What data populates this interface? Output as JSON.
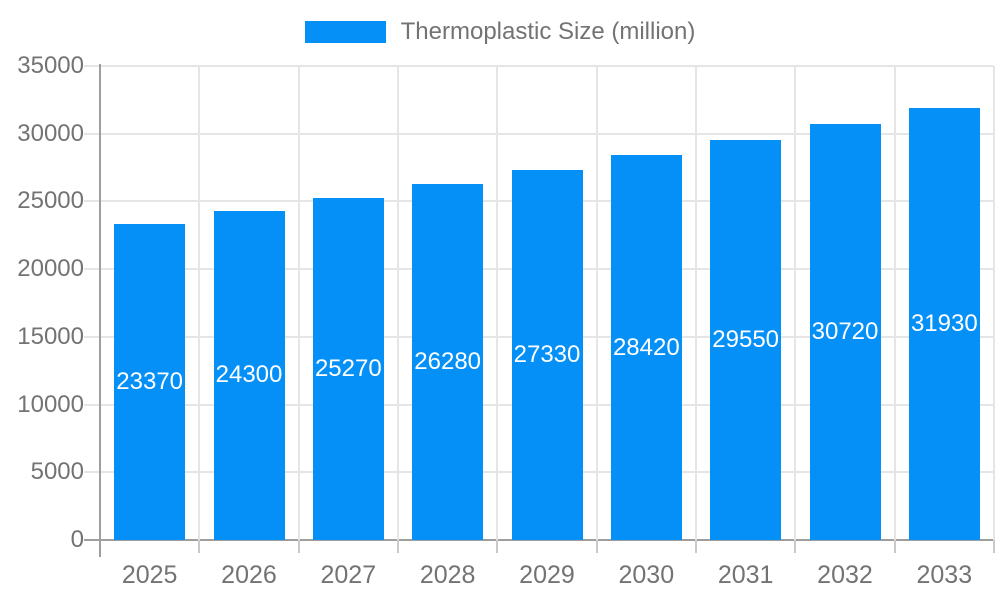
{
  "chart_data": {
    "type": "bar",
    "title": "",
    "legend": "Thermoplastic Size (million)",
    "categories": [
      "2025",
      "2026",
      "2027",
      "2028",
      "2029",
      "2030",
      "2031",
      "2032",
      "2033"
    ],
    "values": [
      23370,
      24300,
      25270,
      26280,
      27330,
      28420,
      29550,
      30720,
      31930
    ],
    "bar_labels": [
      "23370",
      "24300",
      "25270",
      "26280",
      "27330",
      "28420",
      "29550",
      "30720",
      "31930"
    ],
    "xlabel": "",
    "ylabel": "",
    "ylim": [
      0,
      35000
    ],
    "yticks": [
      0,
      5000,
      10000,
      15000,
      20000,
      25000,
      30000,
      35000
    ],
    "grid": true,
    "legend_position": "top"
  },
  "colors": {
    "bar": "#0590f8",
    "grid": "#e5e5e5",
    "axis": "#9e9e9e",
    "tick": "#c9c9c9",
    "text": "#737373",
    "bar_label": "#ffffff"
  }
}
